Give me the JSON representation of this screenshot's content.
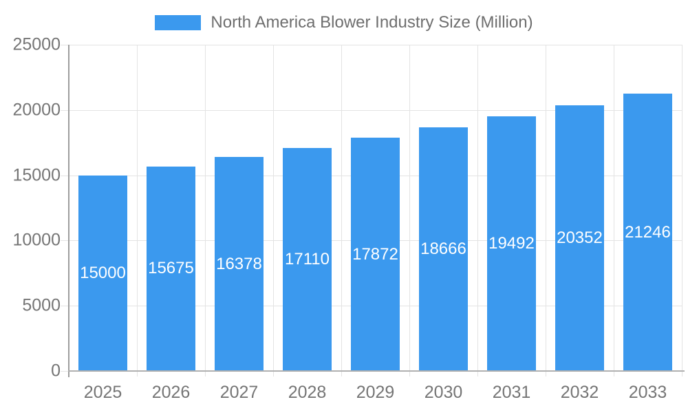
{
  "legend": {
    "label": "North America Blower Industry Size (Million)"
  },
  "chart_data": {
    "type": "bar",
    "title": "North America Blower Industry Size (Million)",
    "series_name": "North America Blower Industry Size (Million)",
    "categories": [
      "2025",
      "2026",
      "2027",
      "2028",
      "2029",
      "2030",
      "2031",
      "2032",
      "2033"
    ],
    "values": [
      15000,
      15675,
      16378,
      17110,
      17872,
      18666,
      19492,
      20352,
      21246
    ],
    "xlabel": "",
    "ylabel": "",
    "ylim": [
      0,
      25000
    ],
    "yticks": [
      0,
      5000,
      10000,
      15000,
      20000,
      25000
    ],
    "grid": true,
    "legend_position": "top",
    "bar_color": "#3B99EE",
    "value_label_color": "#FFFFFF",
    "axis_text_color": "#757575",
    "legend_text_color": "#6E6E6E",
    "gridline_color": "#E3E3E3"
  }
}
